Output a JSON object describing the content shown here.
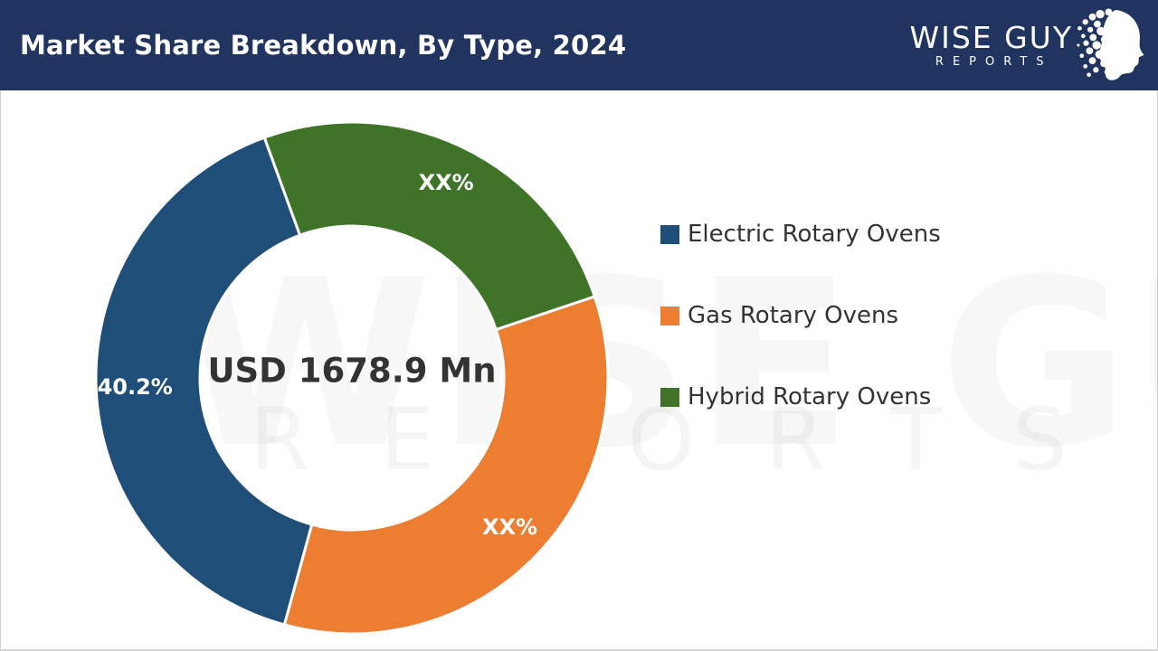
{
  "header": {
    "title": "Market Share Breakdown, By Type, 2024",
    "background_color": "#21345F",
    "logo": {
      "line1": "WISE GUY",
      "line2": "REPORTS"
    }
  },
  "chart_data": {
    "type": "pie",
    "subtype": "donut",
    "title": "Market Share Breakdown, By Type, 2024",
    "center_label": "USD 1678.9 Mn",
    "legend_position": "right",
    "start_angle_deg": 250,
    "direction": "counterclockwise",
    "slices": [
      {
        "name": "Electric Rotary Ovens",
        "display_label": "40.2%",
        "arc_pct": 40.2,
        "color": "#1F4E79"
      },
      {
        "name": "Gas Rotary Ovens",
        "display_label": "XX%",
        "arc_pct": 34.4,
        "color": "#ED7D31"
      },
      {
        "name": "Hybrid Rotary Ovens",
        "display_label": "XX%",
        "arc_pct": 25.4,
        "color": "#3F7428"
      }
    ],
    "slice_label_color": "#ffffff",
    "center_label_color": "#333333"
  },
  "watermark": {
    "line1": "WISE GUY",
    "line2": "REPORTS"
  }
}
